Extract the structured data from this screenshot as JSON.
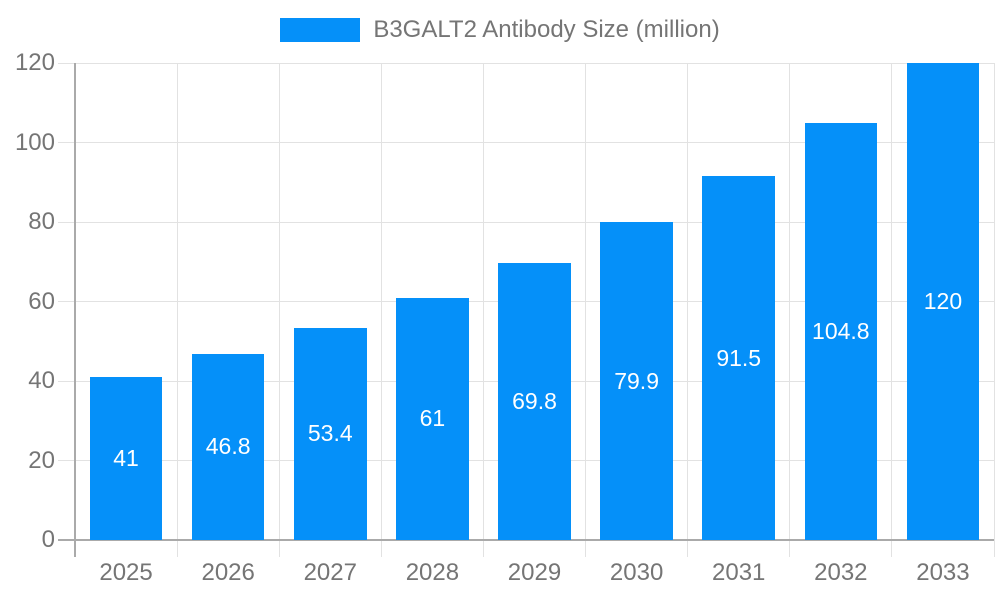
{
  "chart_data": {
    "type": "bar",
    "title": "B3GALT2 Antibody Size (million)",
    "categories": [
      "2025",
      "2026",
      "2027",
      "2028",
      "2029",
      "2030",
      "2031",
      "2032",
      "2033"
    ],
    "values": [
      41,
      46.8,
      53.4,
      61,
      69.8,
      79.9,
      91.5,
      104.8,
      120
    ],
    "value_labels": [
      "41",
      "46.8",
      "53.4",
      "61",
      "69.8",
      "79.9",
      "91.5",
      "104.8",
      "120"
    ],
    "yticks": [
      0,
      20,
      40,
      60,
      80,
      100,
      120
    ],
    "ylim": [
      0,
      120
    ],
    "xlabel": "",
    "ylabel": "",
    "grid": true,
    "legend_position": "top",
    "colors": {
      "bar": "#0590f9",
      "axis_text": "#757575",
      "legend_text": "#757575",
      "value_label": "#ffffff",
      "gridline": "#e2e2e2",
      "axis_line": "#aaaaaa",
      "background": "#ffffff"
    }
  }
}
